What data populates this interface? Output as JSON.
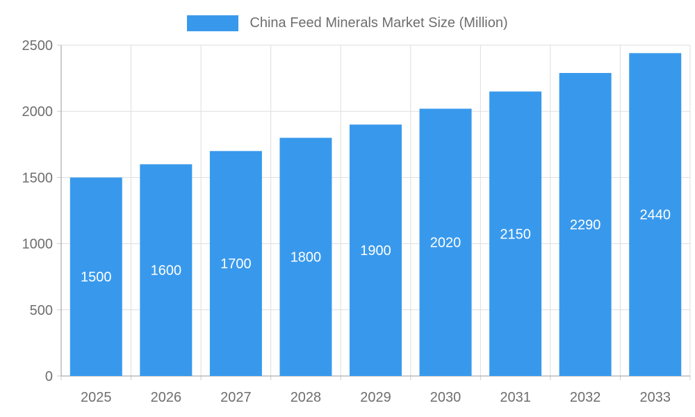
{
  "chart_data": {
    "type": "bar",
    "title": "China Feed Minerals Market Size (Million)",
    "categories": [
      "2025",
      "2026",
      "2027",
      "2028",
      "2029",
      "2030",
      "2031",
      "2032",
      "2033"
    ],
    "values": [
      1500,
      1600,
      1700,
      1800,
      1900,
      2020,
      2150,
      2290,
      2440
    ],
    "xlabel": "",
    "ylabel": "",
    "ylim": [
      0,
      2500
    ],
    "yticks": [
      0,
      500,
      1000,
      1500,
      2000,
      2500
    ],
    "grid": true,
    "legend_position": "top-center",
    "value_labels": "inside-middle",
    "bar_color": "#3899EC",
    "value_label_color": "#ffffff",
    "text_color": "#6e6e6e",
    "grid_color": "#dddddd",
    "axis_color": "#999999",
    "tick_color": "#cccccc"
  }
}
